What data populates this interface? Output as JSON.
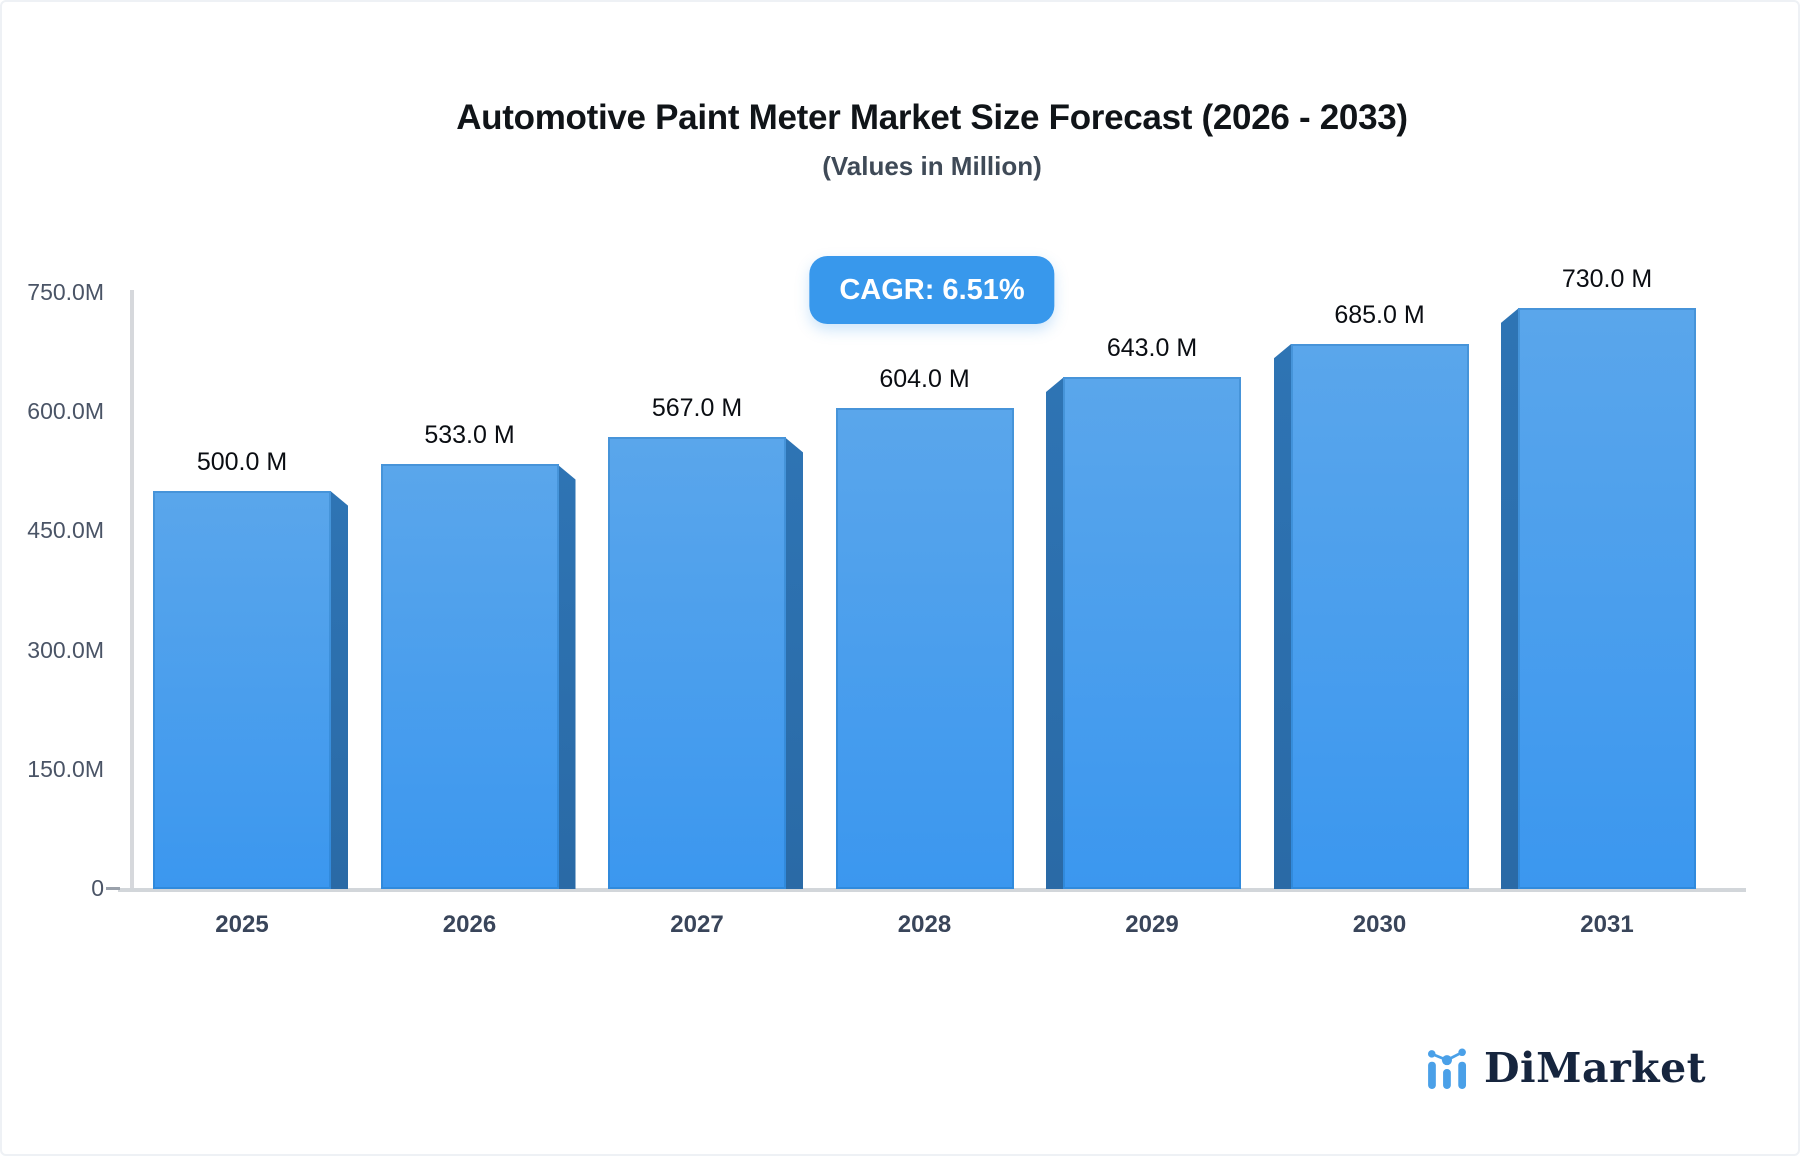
{
  "header": {
    "title": "Automotive Paint Meter Market Size Forecast (2026 - 2033)",
    "subtitle": "(Values in Million)"
  },
  "badge": {
    "label": "CAGR: 6.51%",
    "bg_color": "#3898EC",
    "text_color": "#ffffff"
  },
  "chart_data": {
    "type": "bar",
    "title": "Automotive Paint Meter Market Size Forecast (2026 - 2033)",
    "subtitle": "(Values in Million)",
    "categories": [
      "2025",
      "2026",
      "2027",
      "2028",
      "2029",
      "2030",
      "2031"
    ],
    "values": [
      500,
      533,
      567,
      604,
      643,
      685,
      730
    ],
    "value_labels": [
      "500.0 M",
      "533.0 M",
      "567.0 M",
      "604.0 M",
      "643.0 M",
      "685.0 M",
      "730.0 M"
    ],
    "ylim": [
      0,
      750
    ],
    "yticks": [
      {
        "value": 750,
        "label": "750.0M"
      },
      {
        "value": 600,
        "label": "600.0M"
      },
      {
        "value": 450,
        "label": "450.0M"
      },
      {
        "value": 300,
        "label": "300.0M"
      },
      {
        "value": 150,
        "label": "150.0M"
      },
      {
        "value": 0,
        "label": "0"
      }
    ],
    "grid": false,
    "legend": "none",
    "bar_style": {
      "face_top_color": "#5AA6EB",
      "face_bottom_color": "#3B97EF",
      "side_color": "#2D72B0",
      "effect": "3d-perspective-toward-center"
    }
  },
  "footer": {
    "brand": "DiMarket",
    "logo_icon": "mini-bar-chart-icon",
    "brand_text_color": "#16253e",
    "logo_blue": "#4AA0E8"
  }
}
